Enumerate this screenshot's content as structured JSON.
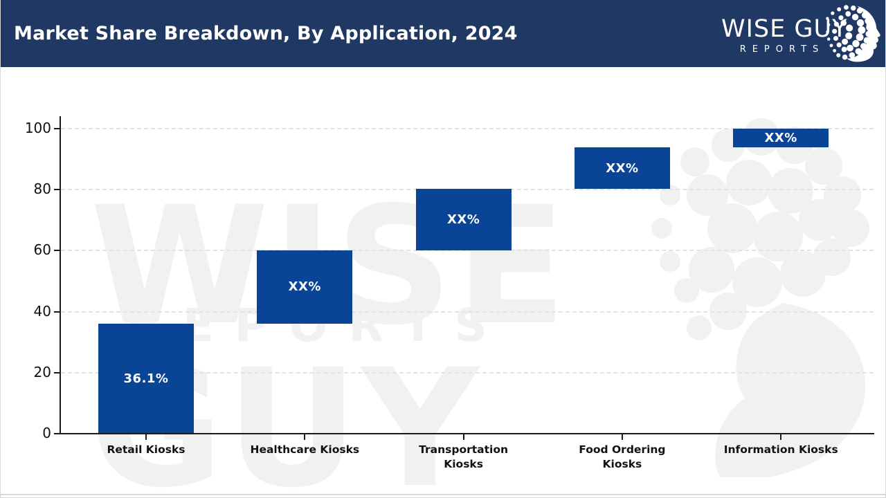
{
  "header": {
    "title": "Market Share Breakdown, By Application, 2024",
    "bg_color": "#203864",
    "logo_line1": "WISE GUY",
    "logo_line2": "REPORTS"
  },
  "watermark": {
    "line1": "WISE GUY",
    "line2": "REPORTS"
  },
  "chart_data": {
    "type": "bar",
    "subtype": "waterfall",
    "title": "Market Share Breakdown, By Application, 2024",
    "categories": [
      "Retail Kiosks",
      "Healthcare Kiosks",
      "Transportation Kiosks",
      "Food Ordering Kiosks",
      "Information Kiosks"
    ],
    "tick_labels": [
      "Retail Kiosks",
      "Healthcare Kiosks",
      "Transportation\nKiosks",
      "Food Ordering\nKiosks",
      "Information Kiosks"
    ],
    "segments": [
      {
        "category": "Retail Kiosks",
        "start": 0,
        "end": 36.1,
        "label": "36.1%"
      },
      {
        "category": "Healthcare Kiosks",
        "start": 36.1,
        "end": 60.2,
        "label": "XX%"
      },
      {
        "category": "Transportation Kiosks",
        "start": 60.2,
        "end": 80.2,
        "label": "XX%"
      },
      {
        "category": "Food Ordering Kiosks",
        "start": 80.2,
        "end": 93.8,
        "label": "XX%"
      },
      {
        "category": "Information Kiosks",
        "start": 93.8,
        "end": 100.1,
        "label": "XX%"
      }
    ],
    "ylim": [
      0,
      100
    ],
    "yticks": [
      0,
      20,
      40,
      60,
      80,
      100
    ],
    "ytick_labels": [
      "0",
      "20",
      "40",
      "60",
      "80",
      "100"
    ],
    "xlabel": "",
    "ylabel": "",
    "grid": "horizontal-dashed",
    "legend": "none",
    "bar_color": "#0a4496",
    "bar_label_color": "#ffffff",
    "header_color": "#203864"
  }
}
